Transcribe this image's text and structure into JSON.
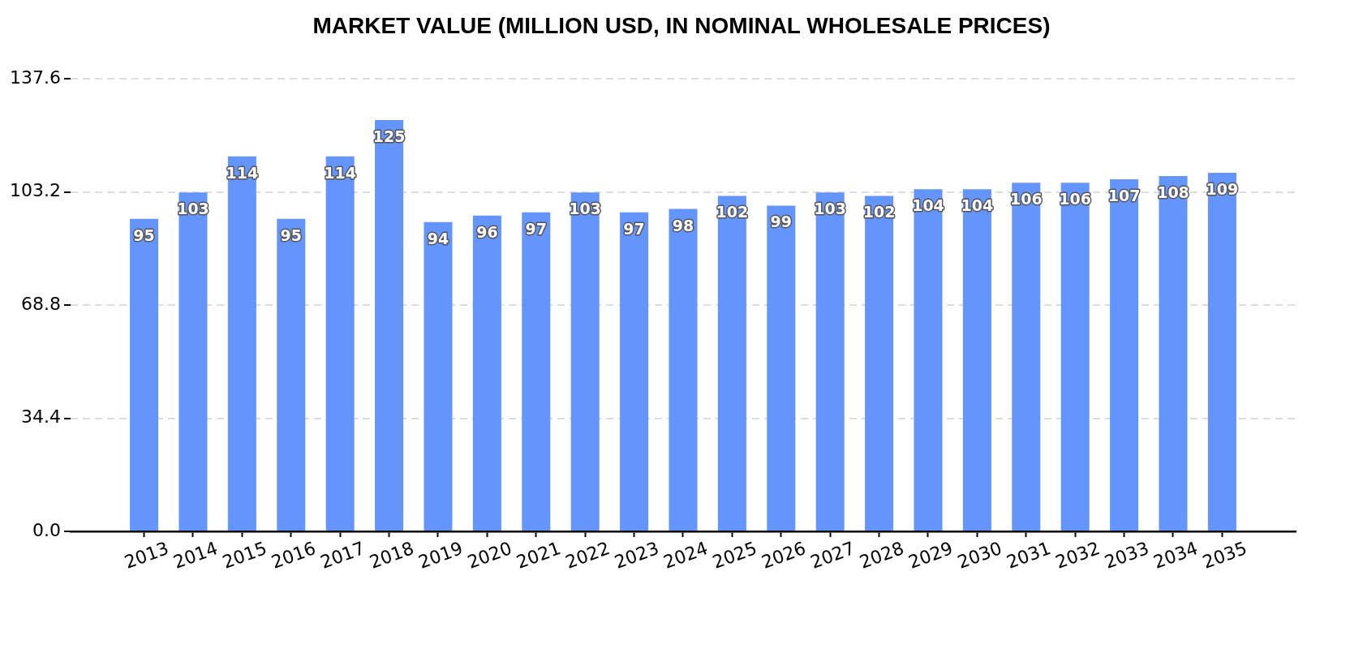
{
  "chart_data": {
    "type": "bar",
    "title": "MARKET VALUE (MILLION USD, IN NOMINAL WHOLESALE PRICES)",
    "categories": [
      "2013",
      "2014",
      "2015",
      "2016",
      "2017",
      "2018",
      "2019",
      "2020",
      "2021",
      "2022",
      "2023",
      "2024",
      "2025",
      "2026",
      "2027",
      "2028",
      "2029",
      "2030",
      "2031",
      "2032",
      "2033",
      "2034",
      "2035"
    ],
    "values": [
      95,
      103,
      114,
      95,
      114,
      125,
      94,
      96,
      97,
      103,
      97,
      98,
      102,
      99,
      103,
      102,
      104,
      104,
      106,
      106,
      107,
      108,
      109
    ],
    "color": "#6495fd",
    "ylim": [
      0,
      137.6
    ],
    "yticks": [
      {
        "value": 0,
        "label": "0.0"
      },
      34.4,
      68.8,
      103.2,
      137.6
    ],
    "grid": "y",
    "data_labels": true
  }
}
